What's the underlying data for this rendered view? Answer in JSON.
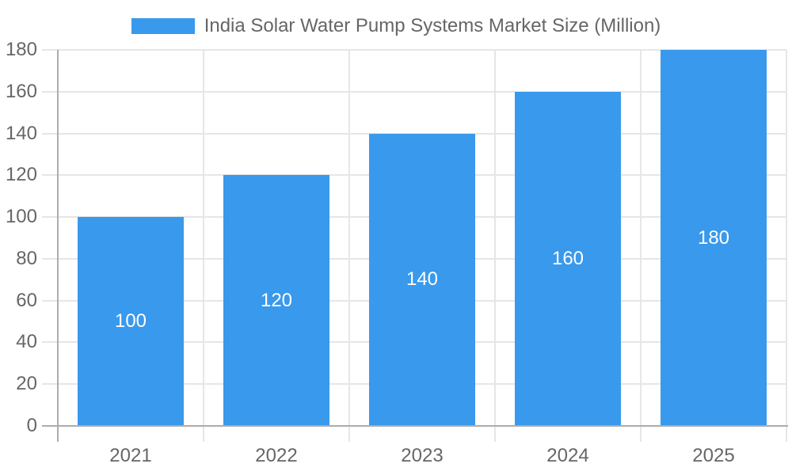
{
  "chart_data": {
    "type": "bar",
    "title": "India Solar Water Pump Systems Market Size (Million)",
    "categories": [
      "2021",
      "2022",
      "2023",
      "2024",
      "2025"
    ],
    "series": [
      {
        "name": "India Solar Water Pump Systems Market Size (Million)",
        "values": [
          100,
          120,
          140,
          160,
          180
        ]
      }
    ],
    "value_labels": [
      "100",
      "120",
      "140",
      "160",
      "180"
    ],
    "xlabel": "",
    "ylabel": "",
    "ylim": [
      0,
      180
    ],
    "ytick_step": 20,
    "ytick_labels": [
      "0",
      "20",
      "40",
      "60",
      "80",
      "100",
      "120",
      "140",
      "160",
      "180"
    ],
    "grid": "horizontal and vertical gridlines on",
    "legend_position": "top-center",
    "colors": {
      "bar": "#3999EC",
      "value_label": "#FFFFFF",
      "axis_text": "#666666",
      "gridline": "#E6E6E6",
      "axis_line": "#ACACAC",
      "background": "#FFFFFF"
    }
  }
}
